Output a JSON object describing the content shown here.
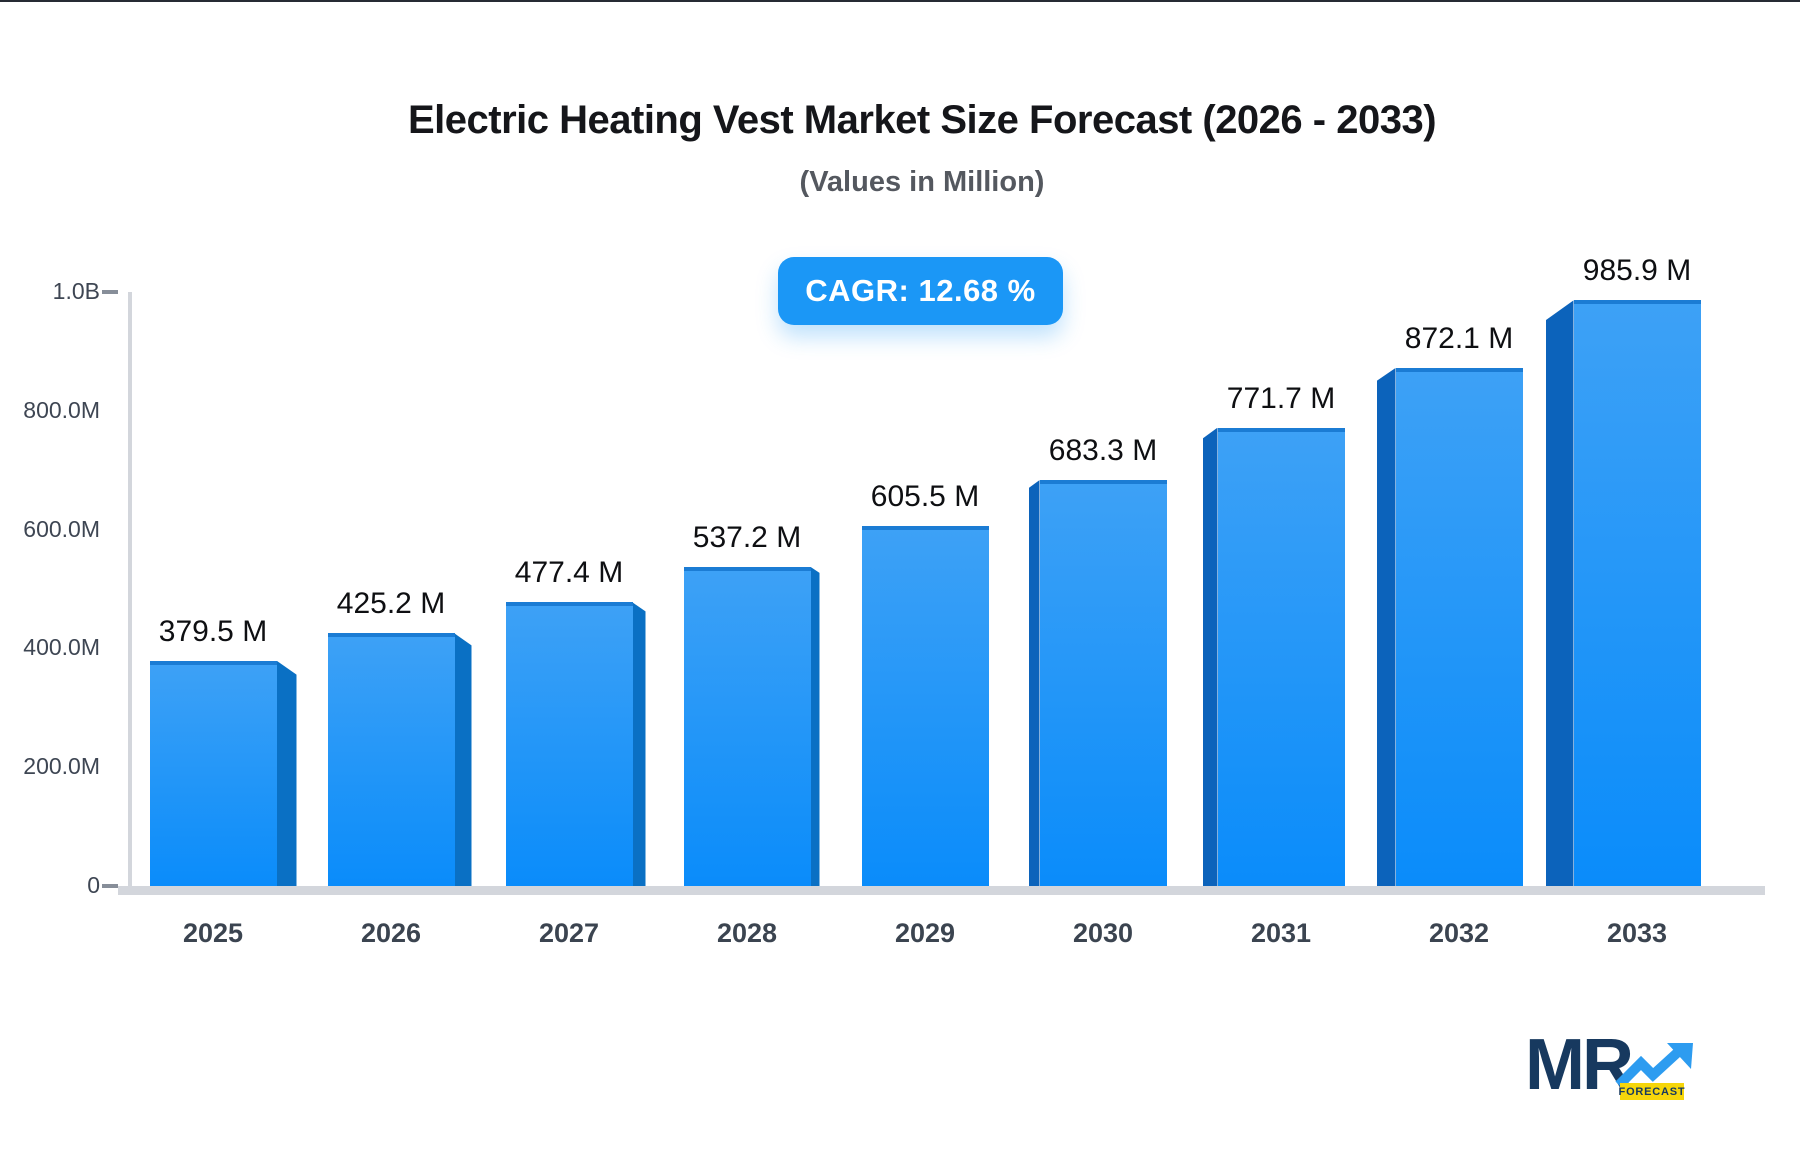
{
  "header": {
    "title": "Electric Heating Vest Market Size Forecast (2026 - 2033)",
    "subtitle": "(Values in Million)",
    "cagr_label": "CAGR: 12.68 %"
  },
  "chart_data": {
    "type": "bar",
    "title": "Electric Heating Vest Market Size Forecast (2026 - 2033)",
    "subtitle": "(Values in Million)",
    "annotation": "CAGR: 12.68 %",
    "cagr_percent": 12.68,
    "categories": [
      "2025",
      "2026",
      "2027",
      "2028",
      "2029",
      "2030",
      "2031",
      "2032",
      "2033"
    ],
    "values": [
      379.5,
      425.2,
      477.4,
      537.2,
      605.5,
      683.3,
      771.7,
      872.1,
      985.9
    ],
    "data_labels": [
      "379.5 M",
      "425.2 M",
      "477.4 M",
      "537.2 M",
      "605.5 M",
      "683.3 M",
      "771.7 M",
      "872.1 M",
      "985.9 M"
    ],
    "unit_millions": true,
    "xlabel": "",
    "ylabel": "",
    "ylim_millions": [
      0,
      1000
    ],
    "y_ticks": {
      "labels": [
        "1.0B",
        "800.0M",
        "600.0M",
        "400.0M",
        "200.0M",
        "0"
      ],
      "values_millions": [
        1000,
        800,
        600,
        400,
        200,
        0
      ]
    },
    "grid": false,
    "legend": "none",
    "bar_style": "3d-perspective-blue"
  },
  "colors": {
    "bar_top": "#3da1f6",
    "bar_bottom": "#0a8cfa",
    "bar_top_border": "#1b7cd4",
    "bar_side_right": "#0a70c4",
    "bar_side_left": "#0c63bb",
    "axis_line": "#d3d6dc",
    "tick_dash": "#878e99",
    "axis_text": "#3e4653",
    "data_label": "#0e0f12",
    "badge_bg": "#1b97f6",
    "badge_text": "#ffffff",
    "logo_navy": "#17395f",
    "logo_blue": "#2d9cf0",
    "logo_yellow": "#f6d60a"
  },
  "logo": {
    "text": "MR",
    "tagline": "FORECAST"
  }
}
